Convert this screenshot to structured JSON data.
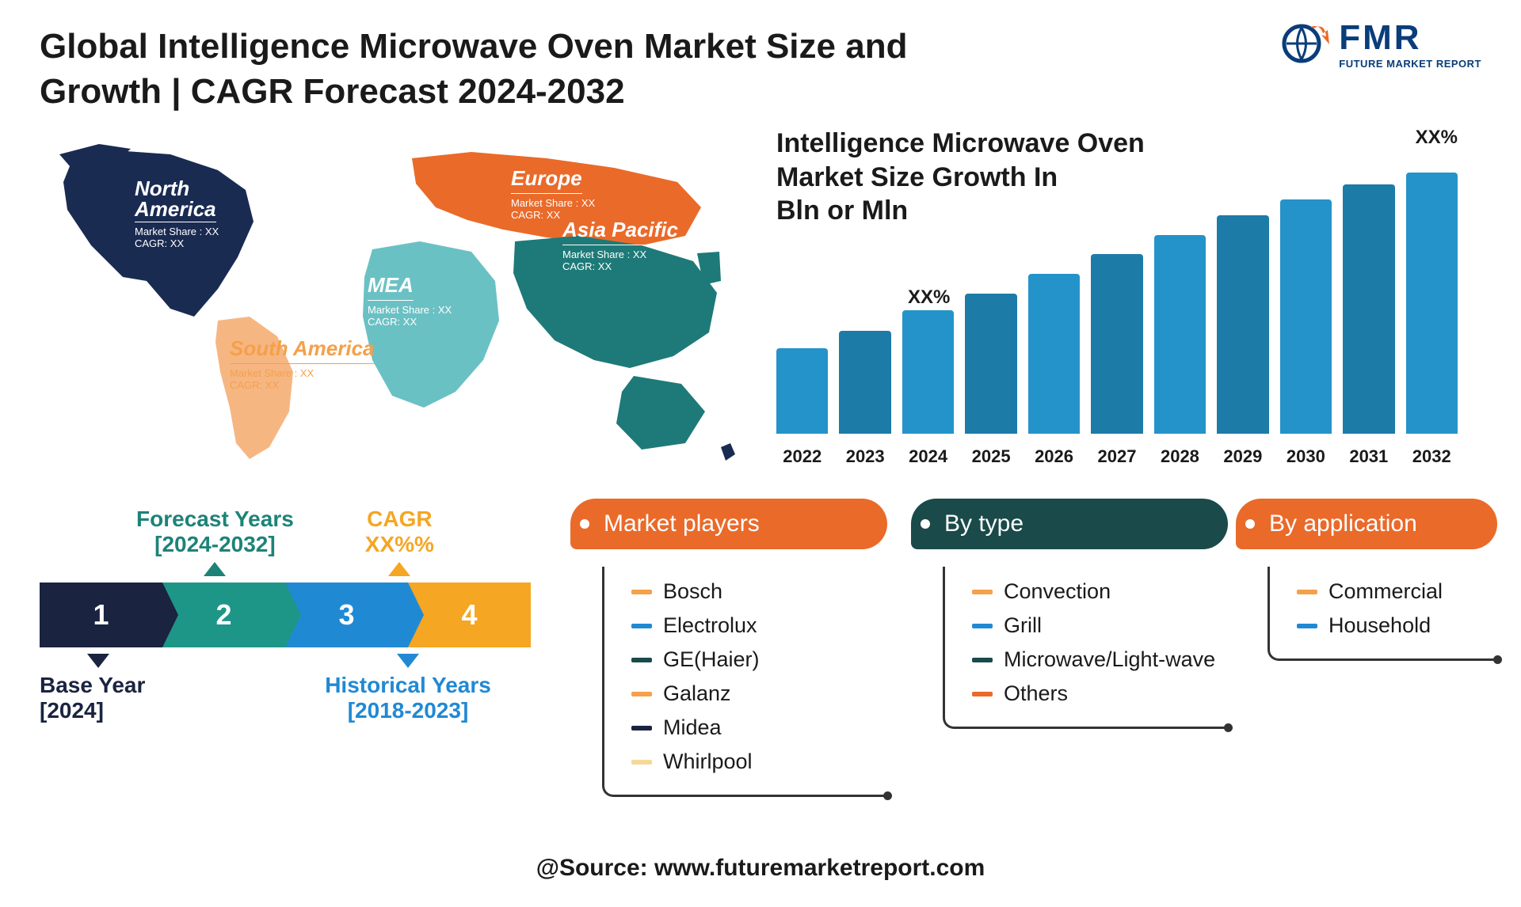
{
  "title": "Global Intelligence Microwave Oven Market Size and Growth | CAGR Forecast 2024-2032",
  "logo": {
    "fmr": "FMR",
    "sub": "FUTURE MARKET REPORT"
  },
  "colors": {
    "navy": "#1a2b52",
    "orange": "#ea6a2a",
    "teal": "#1e7a78",
    "ltteal": "#6ac1c4",
    "peach": "#f6b682",
    "blueBar": "#2493c9",
    "blueBarDark": "#1d7ba8",
    "pillOrange": "#ea6a2a",
    "pillTeal": "#1a4a4a"
  },
  "regions": {
    "na": {
      "name": "North\nAmerica",
      "share": "Market Share : XX",
      "cagr": "CAGR: XX"
    },
    "sa": {
      "name": "South America",
      "share": "Market Share : XX",
      "cagr": "CAGR: XX"
    },
    "eu": {
      "name": "Europe",
      "share": "Market Share : XX",
      "cagr": "CAGR: XX"
    },
    "mea": {
      "name": "MEA",
      "share": "Market Share : XX",
      "cagr": "CAGR: XX"
    },
    "ap": {
      "name": "Asia Pacific",
      "share": "Market Share : XX",
      "cagr": "CAGR: XX"
    }
  },
  "chart": {
    "title": "Intelligence Microwave Oven Market Size Growth In\nBln or Mln",
    "years": [
      "2022",
      "2023",
      "2024",
      "2025",
      "2026",
      "2027",
      "2028",
      "2029",
      "2030",
      "2031",
      "2032"
    ],
    "values": [
      110,
      132,
      158,
      180,
      205,
      230,
      255,
      280,
      300,
      320,
      335
    ],
    "barColor": "#2493c9",
    "barColorAlt": "#1d7ba8",
    "pct2024": "XX%",
    "pct2032": "XX%"
  },
  "timeline": {
    "forecast": {
      "label": "Forecast Years",
      "range": "[2024-2032]",
      "color": "#1d8378"
    },
    "cagr": {
      "label": "CAGR",
      "value": "XX%%",
      "color": "#f5a623"
    },
    "base": {
      "label": "Base Year",
      "range": "[2024]",
      "color": "#1a2340"
    },
    "hist": {
      "label": "Historical Years",
      "range": "[2018-2023]",
      "color": "#2089d4"
    },
    "segs": [
      "1",
      "2",
      "3",
      "4"
    ]
  },
  "cats": {
    "players": {
      "title": "Market players",
      "pillColor": "#ea6a2a",
      "items": [
        {
          "t": "Bosch",
          "c": "#f5a04a"
        },
        {
          "t": "Electrolux",
          "c": "#2089d4"
        },
        {
          "t": "GE(Haier)",
          "c": "#1a4a4a"
        },
        {
          "t": "Galanz",
          "c": "#f5a04a"
        },
        {
          "t": "Midea",
          "c": "#1a2340"
        },
        {
          "t": "Whirlpool",
          "c": "#f5d89a"
        }
      ]
    },
    "type": {
      "title": "By type",
      "pillColor": "#1a4a4a",
      "items": [
        {
          "t": "Convection",
          "c": "#f5a04a"
        },
        {
          "t": "Grill",
          "c": "#2089d4"
        },
        {
          "t": "Microwave/Light-wave",
          "c": "#1a4a4a"
        },
        {
          "t": "Others",
          "c": "#ea6a2a"
        }
      ]
    },
    "app": {
      "title": "By application",
      "pillColor": "#ea6a2a",
      "items": [
        {
          "t": "Commercial",
          "c": "#f5a04a"
        },
        {
          "t": "Household",
          "c": "#2089d4"
        }
      ]
    }
  },
  "source": "@Source: www.futuremarketreport.com"
}
